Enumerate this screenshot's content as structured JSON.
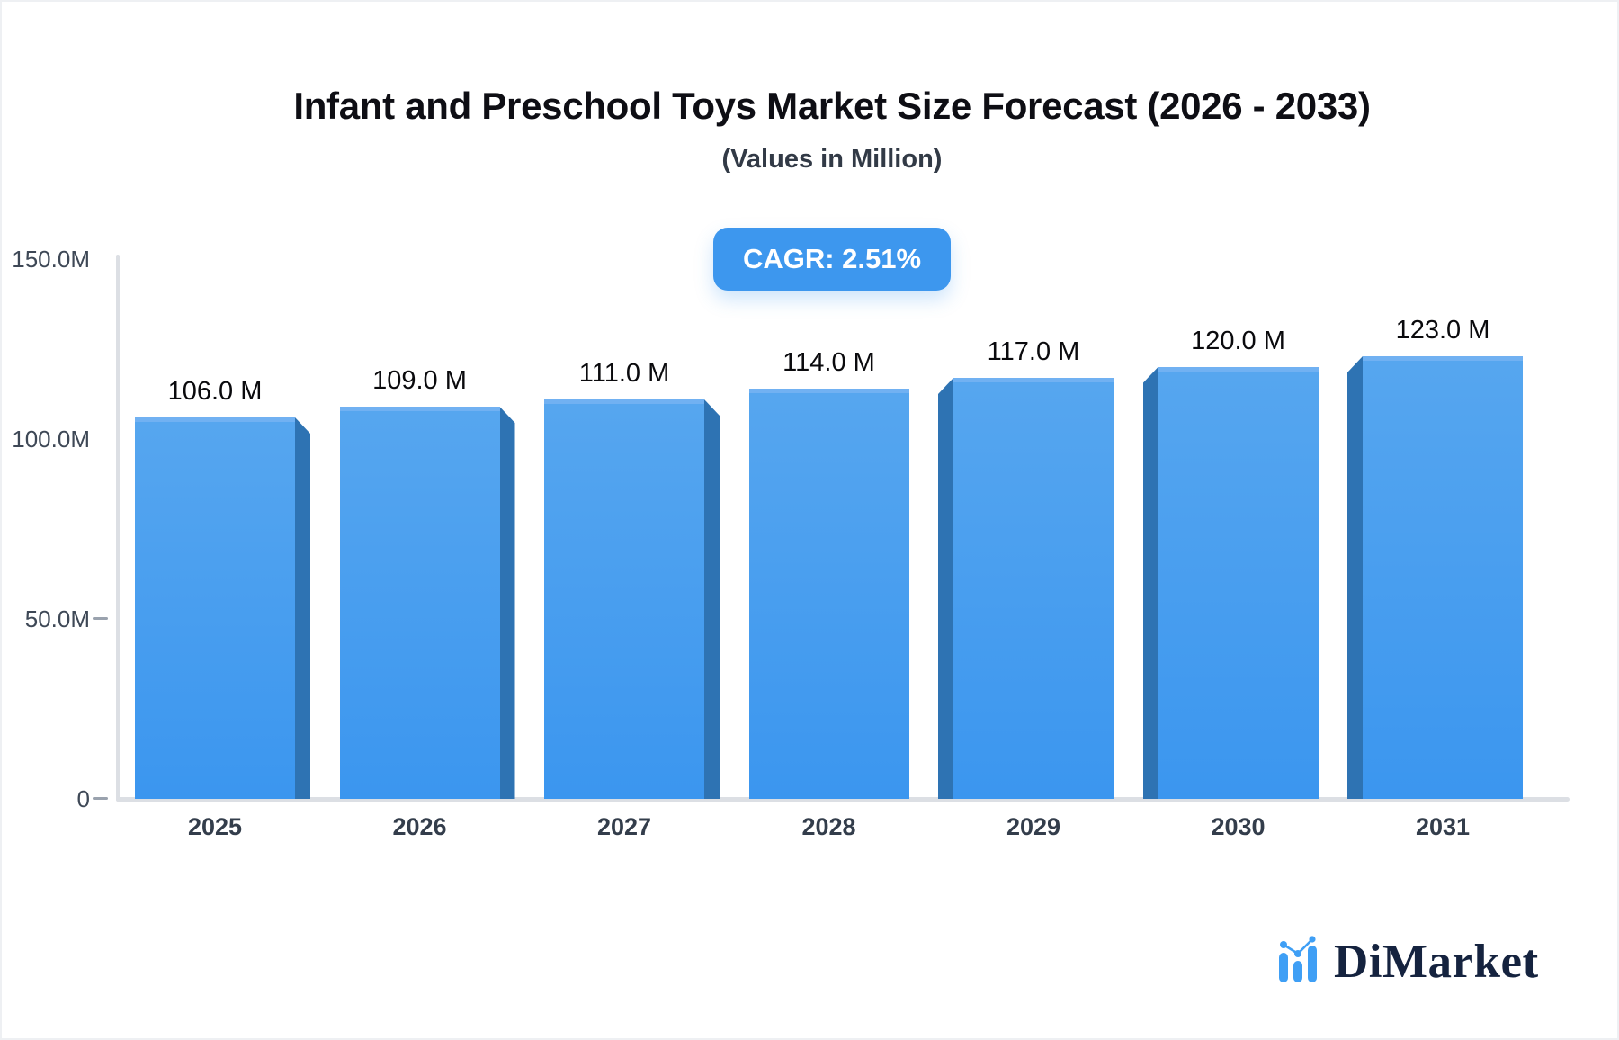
{
  "header": {
    "title": "Infant and Preschool Toys Market Size Forecast (2026 - 2033)",
    "subtitle": "(Values in Million)"
  },
  "badge": {
    "label": "CAGR: 2.51%",
    "color": "#3d97ee",
    "text_color": "#ffffff"
  },
  "chart_data": {
    "type": "bar",
    "title": "Infant and Preschool Toys Market Size Forecast (2026 - 2033)",
    "subtitle": "(Values in Million)",
    "unit": "Million",
    "cagr_percent": 2.51,
    "categories": [
      "2025",
      "2026",
      "2027",
      "2028",
      "2029",
      "2030",
      "2031"
    ],
    "values": [
      106,
      109,
      111,
      114,
      117,
      120,
      123
    ],
    "bar_labels": [
      "106.0 M",
      "109.0 M",
      "111.0 M",
      "114.0 M",
      "117.0 M",
      "120.0 M",
      "123.0 M"
    ],
    "y_ticks": [
      {
        "label": "150.0M",
        "value": 150,
        "dash": false
      },
      {
        "label": "100.0M",
        "value": 100,
        "dash": false
      },
      {
        "label": "50.0M",
        "value": 50,
        "dash": true
      },
      {
        "label": "0",
        "value": 0,
        "dash": true
      }
    ],
    "ylim": [
      0,
      150
    ],
    "grid": false,
    "legend": false,
    "colors": {
      "bar_top": "#56a6ef",
      "bar_bottom": "#3b96ef",
      "bar_highlight": "#71b1f2",
      "bar_side": "#2e73b3",
      "axis": "#dcdfe4"
    }
  },
  "logo": {
    "text": "DiMarket",
    "icon": "bar-chart-logo-icon",
    "text_color": "#15233f",
    "accent": "#3f9ff5"
  }
}
